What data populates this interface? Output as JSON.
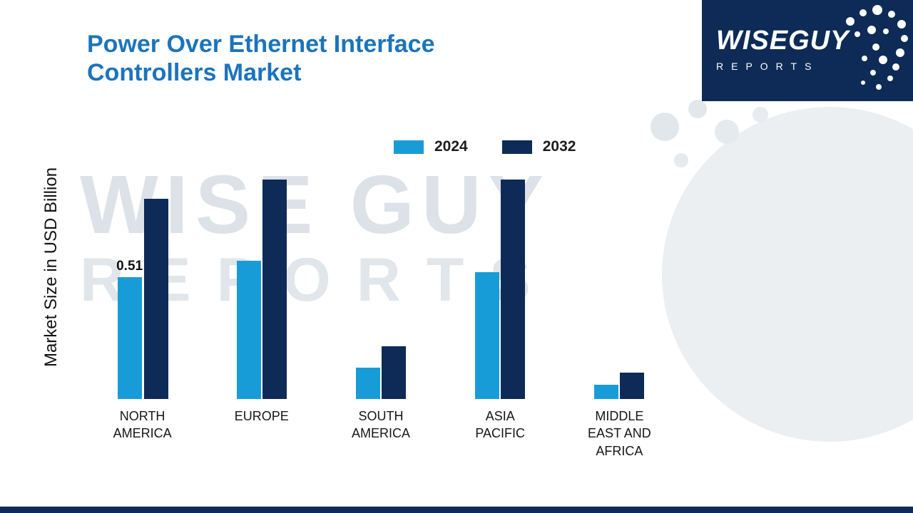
{
  "header": {
    "title": "Power Over Ethernet Interface Controllers Market"
  },
  "logo": {
    "brand_line1": "WISEGUY",
    "brand_line2": "REPORTS"
  },
  "watermark": {
    "line1": "WISE GUY",
    "line2": "REPORTS"
  },
  "colors": {
    "title_blue": "#1b74bc",
    "series_2024_blue": "#189cd8",
    "series_2032_navy": "#0d2b56",
    "watermark_gray": "#dde2e8",
    "navy_strip": "#0d2b56"
  },
  "chart_data": {
    "type": "bar",
    "title": "",
    "xlabel": "",
    "ylabel": "Market Size in USD Billion",
    "ylim": [
      0,
      1.0
    ],
    "grid": false,
    "legend_position": "top",
    "categories": [
      "NORTH AMERICA",
      "EUROPE",
      "SOUTH AMERICA",
      "ASIA PACIFIC",
      "MIDDLE EAST AND AFRICA"
    ],
    "series": [
      {
        "name": "2024",
        "color": "#189cd8",
        "values": [
          0.51,
          0.58,
          0.13,
          0.53,
          0.06
        ],
        "labels": [
          "0.51",
          "",
          "",
          "",
          ""
        ]
      },
      {
        "name": "2032",
        "color": "#0d2b56",
        "values": [
          0.84,
          0.92,
          0.22,
          0.92,
          0.11
        ],
        "labels": [
          "",
          "",
          "",
          "",
          ""
        ]
      }
    ]
  }
}
